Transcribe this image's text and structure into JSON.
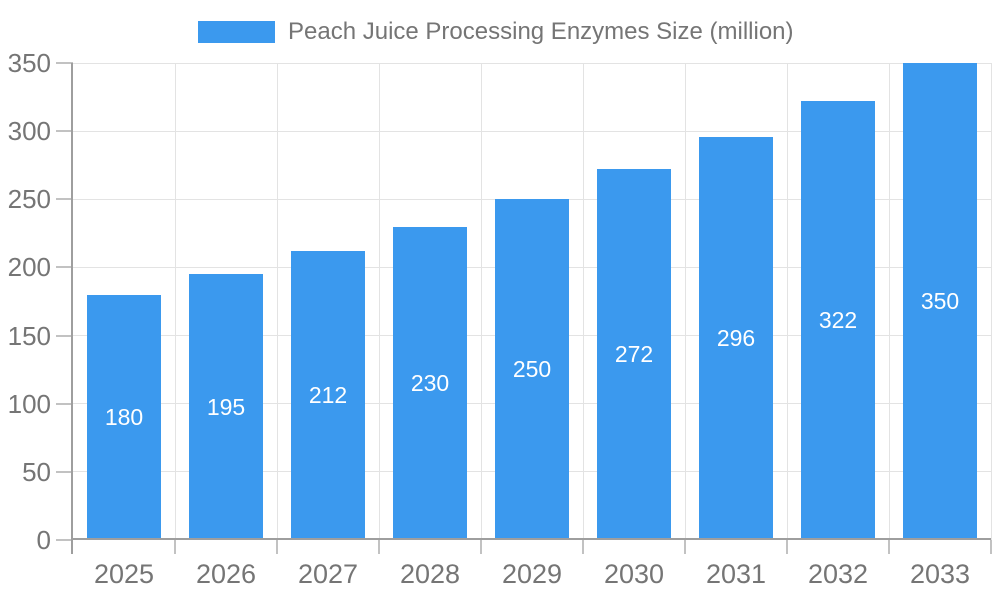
{
  "chart_data": {
    "type": "bar",
    "title": "Peach Juice Processing Enzymes Size (million)",
    "categories": [
      "2025",
      "2026",
      "2027",
      "2028",
      "2029",
      "2030",
      "2031",
      "2032",
      "2033"
    ],
    "values": [
      180,
      195,
      212,
      230,
      250,
      272,
      296,
      322,
      350
    ],
    "xlabel": "",
    "ylabel": "",
    "ylim": [
      0,
      350
    ],
    "ytick_step": 50,
    "y_tick_labels": [
      "0",
      "50",
      "100",
      "150",
      "200",
      "250",
      "300",
      "350"
    ],
    "grid": true,
    "legend_position": "top",
    "value_labels": "inside-center",
    "colors": {
      "bar": "#3b99ee",
      "grid": "#e3e3e3",
      "axis": "#9e9e9e",
      "tick": "#c2c2c2",
      "label_text": "#757575",
      "value_label_text": "#ffffff",
      "background": "#ffffff"
    }
  }
}
